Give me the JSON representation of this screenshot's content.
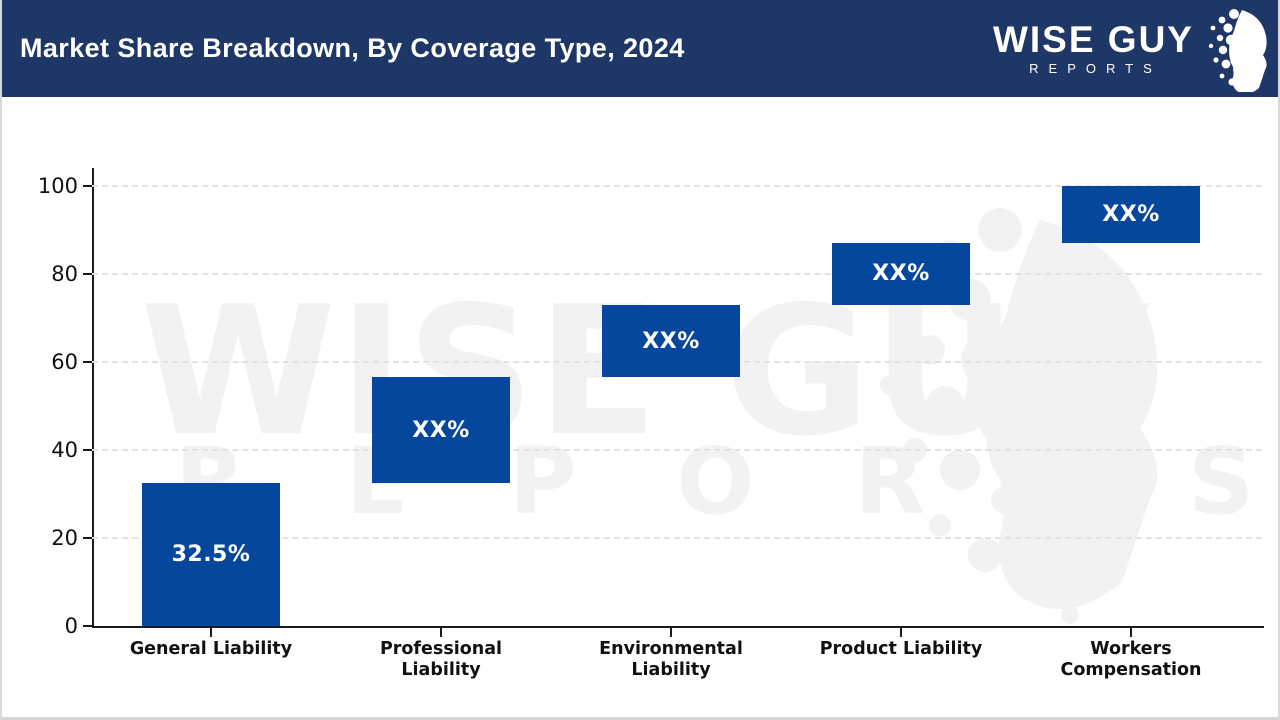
{
  "header": {
    "title": "Market Share Breakdown, By Coverage Type, 2024",
    "brand": {
      "line1": "WISE GUY",
      "line2": "REPORTS"
    },
    "bg_color": "#1f3766",
    "text_color": "#ffffff"
  },
  "watermark": {
    "line1": "WISE GUY",
    "line2": "R E P O R T S"
  },
  "chart_data": {
    "type": "bar",
    "subtype": "waterfall",
    "title": "Market Share Breakdown, By Coverage Type, 2024",
    "categories": [
      {
        "name": "General Liability",
        "lines": [
          "General Liability"
        ]
      },
      {
        "name": "Professional Liability",
        "lines": [
          "Professional",
          "Liability"
        ]
      },
      {
        "name": "Environmental Liability",
        "lines": [
          "Environmental",
          "Liability"
        ]
      },
      {
        "name": "Product Liability",
        "lines": [
          "Product Liability"
        ]
      },
      {
        "name": "Workers Compensation",
        "lines": [
          "Workers",
          "Compensation"
        ]
      }
    ],
    "segments": [
      {
        "label": "32.5%",
        "start": 0,
        "end": 32.5
      },
      {
        "label": "XX%",
        "start": 32.5,
        "end": 56.5
      },
      {
        "label": "XX%",
        "start": 56.5,
        "end": 73
      },
      {
        "label": "XX%",
        "start": 73,
        "end": 87
      },
      {
        "label": "XX%",
        "start": 87,
        "end": 100
      }
    ],
    "xlabel": "",
    "ylabel": "",
    "ylim": [
      0,
      100
    ],
    "yticks": [
      0,
      20,
      40,
      60,
      80,
      100
    ],
    "grid": "horizontal-dashed",
    "legend": "none",
    "bar_color": "#05479c",
    "bar_label_color": "#ffffff",
    "grid_color": "#e2e2e2",
    "axis_color": "#1a1a1a"
  }
}
